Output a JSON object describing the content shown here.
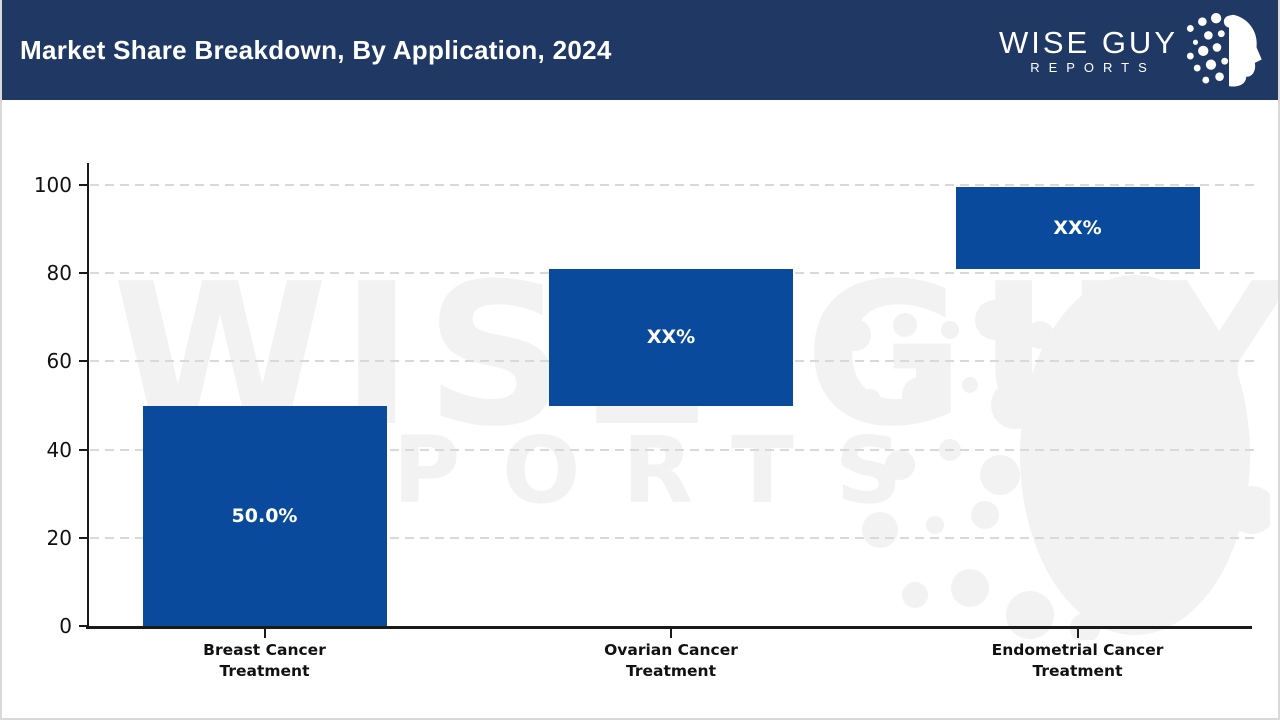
{
  "header": {
    "title": "Market Share Breakdown, By Application, 2024",
    "bg_color": "#1f3864",
    "logo": {
      "line1": "WISE GUY",
      "line2": "REPORTS"
    }
  },
  "watermark": {
    "line1": "WISE GUY",
    "line2": "REPORTS"
  },
  "chart_data": {
    "type": "bar",
    "subtype": "waterfall",
    "title": "Market Share Breakdown, By Application, 2024",
    "categories": [
      {
        "line1": "Breast Cancer",
        "line2": "Treatment"
      },
      {
        "line1": "Ovarian Cancer",
        "line2": "Treatment"
      },
      {
        "line1": "Endometrial Cancer",
        "line2": "Treatment"
      }
    ],
    "bars": [
      {
        "base": 0,
        "top": 50,
        "label": "50.0%"
      },
      {
        "base": 50,
        "top": 81,
        "label": "XX%"
      },
      {
        "base": 81,
        "top": 99.5,
        "label": "XX%"
      }
    ],
    "yticks": [
      0,
      20,
      40,
      60,
      80,
      100
    ],
    "ylim": [
      0,
      105
    ],
    "bar_color": "#0a4a9c",
    "grid": "horizontal-dashed",
    "gridline_color": "#d9d9d9",
    "axis_color": "#1a1a1a",
    "value_label_color": "#ffffff"
  }
}
